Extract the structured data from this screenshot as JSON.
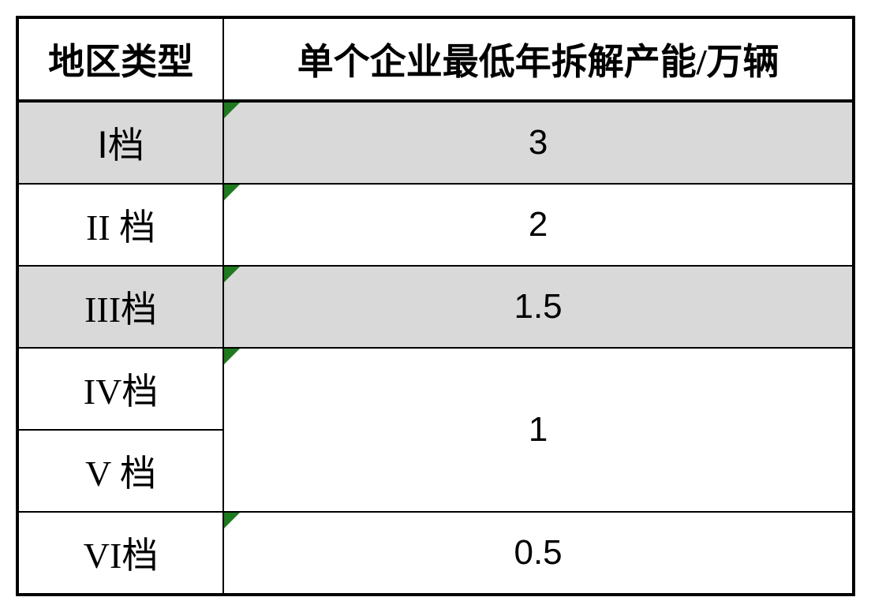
{
  "table": {
    "headers": {
      "region_type": "地区类型",
      "min_capacity": "单个企业最低年拆解产能/万辆"
    },
    "rows": {
      "tier1": {
        "label": "Ⅰ档",
        "value": "3"
      },
      "tier2": {
        "label": "II 档",
        "value": "2"
      },
      "tier3": {
        "label": "III档",
        "value": "1.5"
      },
      "tier4": {
        "label": "IV档"
      },
      "tier5": {
        "label": "V 档"
      },
      "tier4_5_value": "1",
      "tier6": {
        "label": "VI档",
        "value": "0.5"
      }
    },
    "colors": {
      "border": "#000000",
      "shaded_bg": "#d9d9d9",
      "white_bg": "#ffffff",
      "corner_marker": "#1f7a1f"
    }
  }
}
